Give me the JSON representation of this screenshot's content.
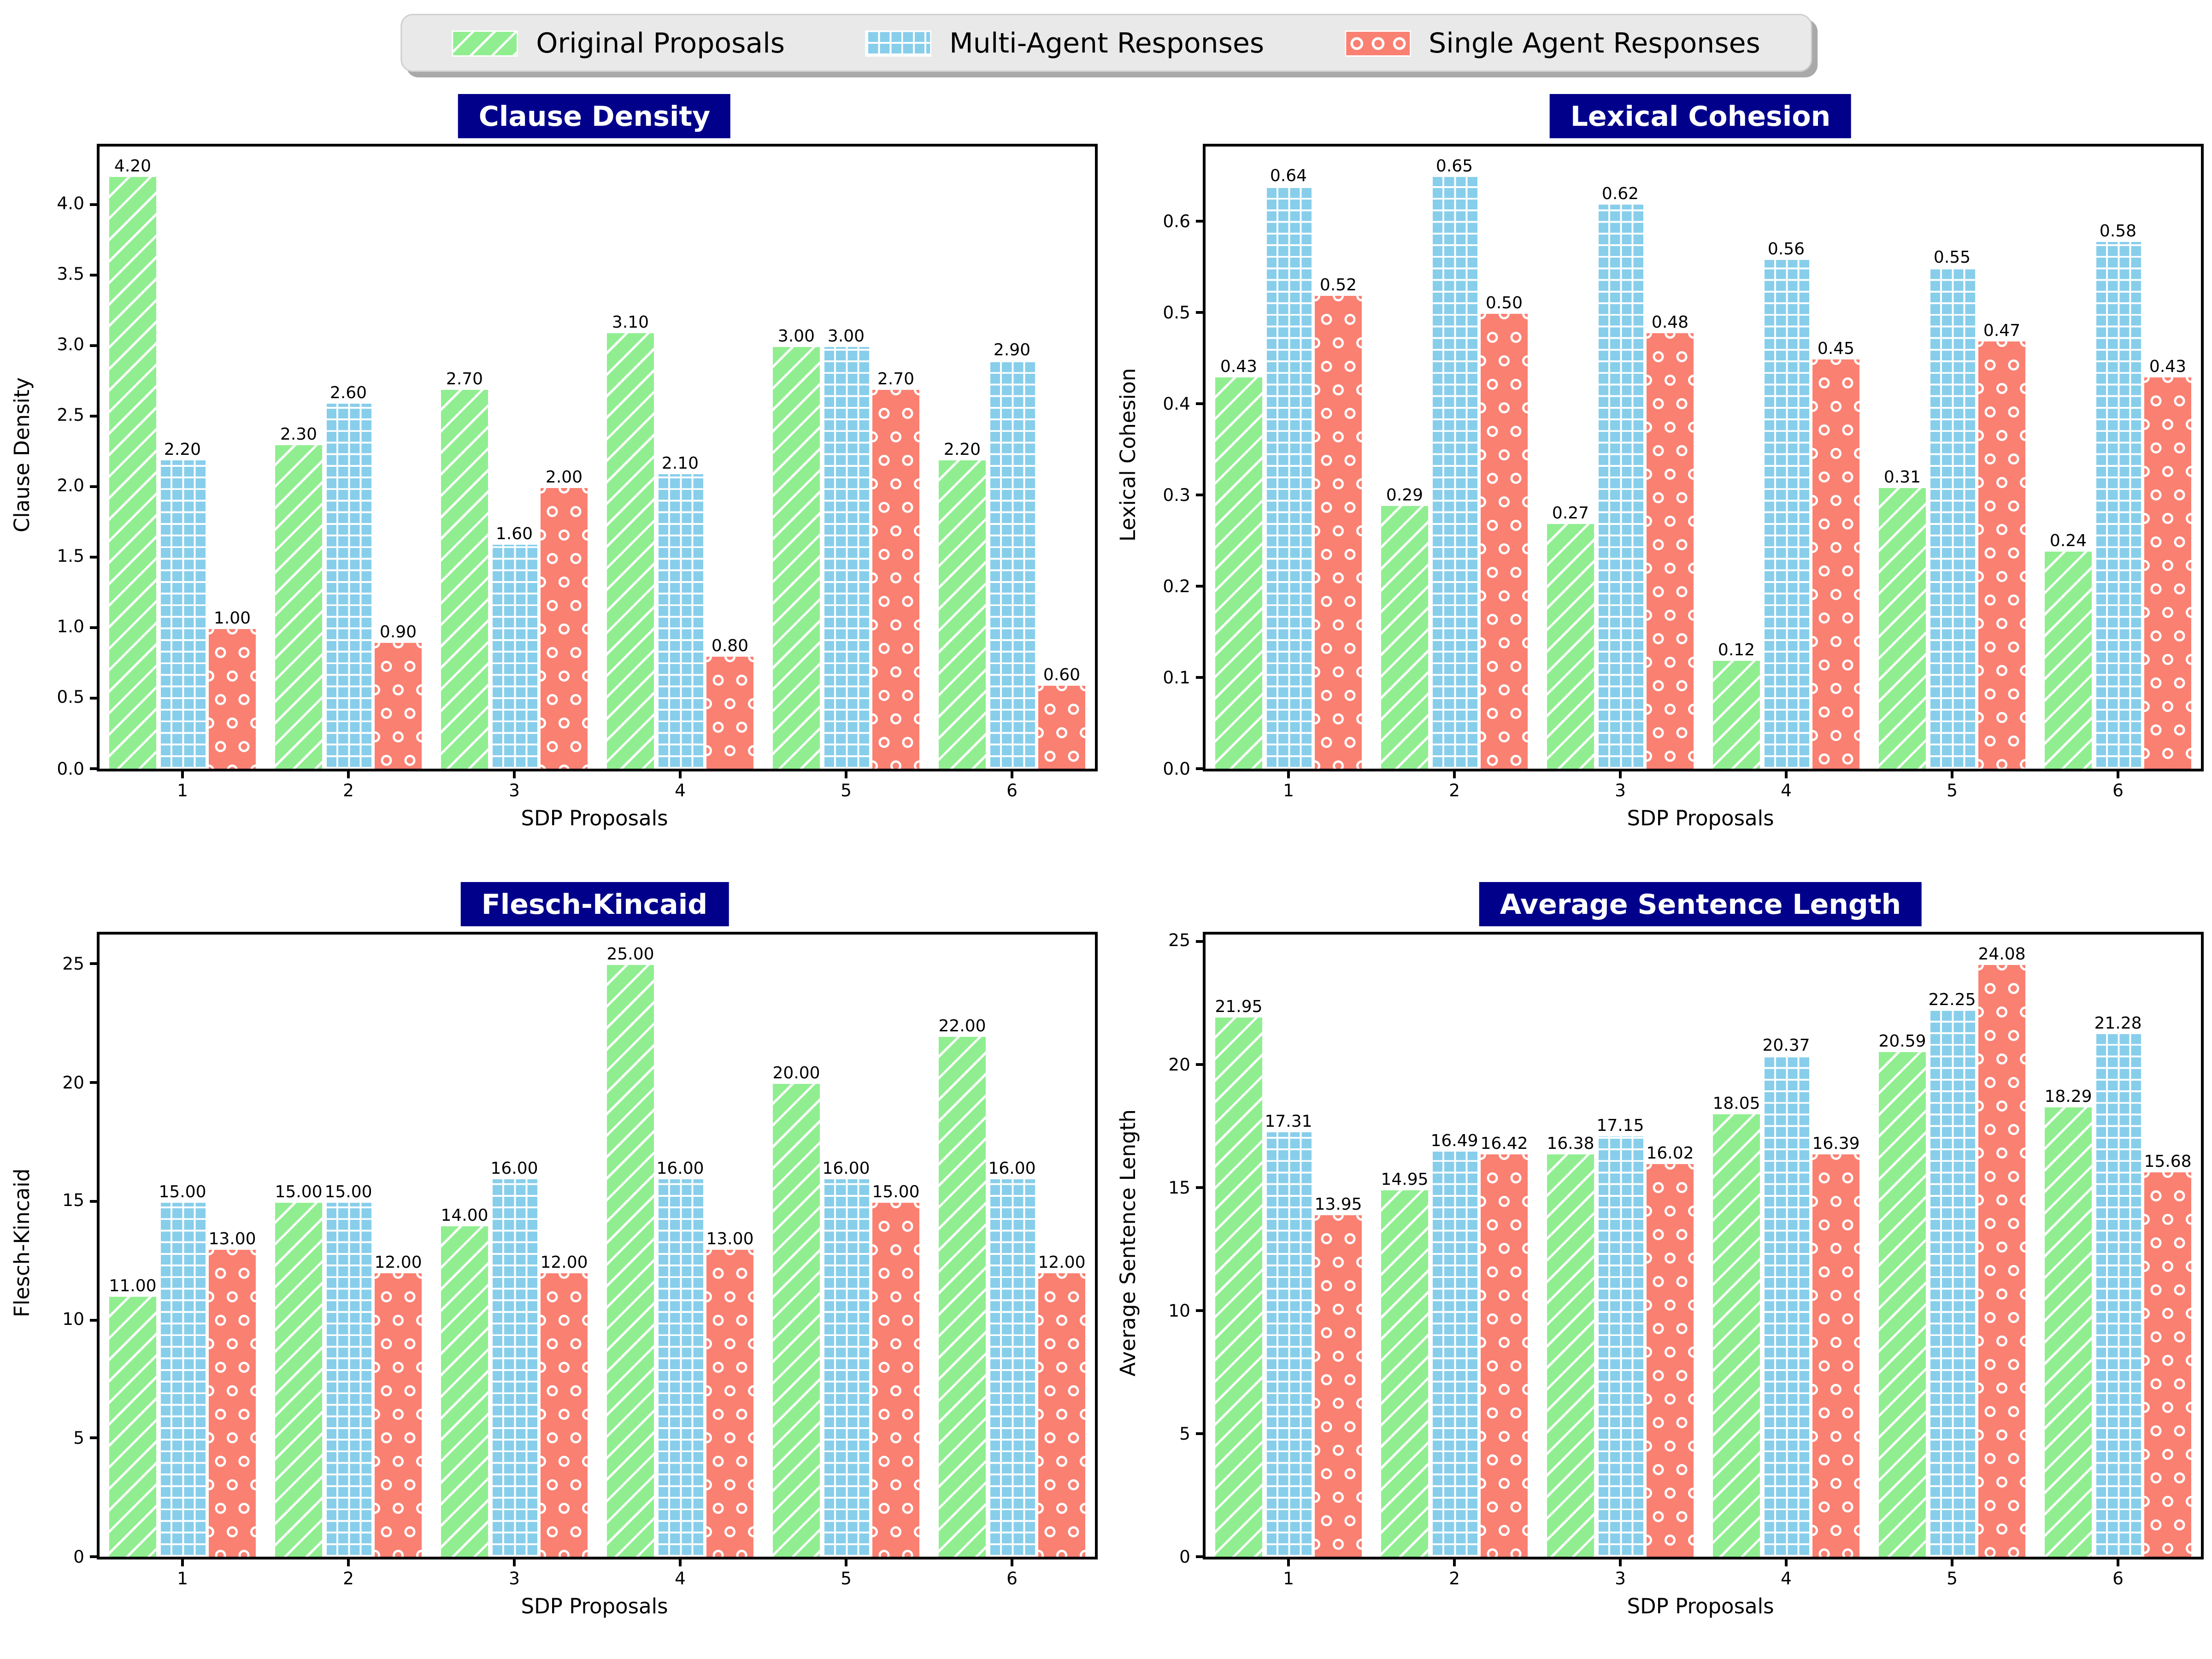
{
  "figure": {
    "background": "#FFFFFF"
  },
  "legend": {
    "background": "#E9E9E9",
    "items": [
      {
        "label": "Original Proposals",
        "swatch": "green-diagonal-hatch",
        "color": "#90EE90"
      },
      {
        "label": "Multi-Agent Responses",
        "swatch": "blue-grid-hatch",
        "color": "#87CEEB"
      },
      {
        "label": "Single Agent Responses",
        "swatch": "salmon-circle-hatch",
        "color": "#FA8072"
      }
    ]
  },
  "style": {
    "title_background": "#00008B",
    "title_text_color": "#FFFFFF",
    "hatch_color": "#FFFFFF",
    "axis_color": "#000000"
  },
  "chart_data": [
    {
      "type": "bar",
      "title": "Clause Density",
      "xlabel": "SDP Proposals",
      "ylabel": "Clause Density",
      "categories": [
        "1",
        "2",
        "3",
        "4",
        "5",
        "6"
      ],
      "series": [
        {
          "name": "Original Proposals",
          "color": "#90EE90",
          "hatch": "diagonal",
          "values": [
            4.2,
            2.3,
            2.7,
            3.1,
            3.0,
            2.2
          ]
        },
        {
          "name": "Multi-Agent Responses",
          "color": "#87CEEB",
          "hatch": "grid",
          "values": [
            2.2,
            2.6,
            1.6,
            2.1,
            3.0,
            2.9
          ]
        },
        {
          "name": "Single Agent Responses",
          "color": "#FA8072",
          "hatch": "circles",
          "values": [
            1.0,
            0.9,
            2.0,
            0.8,
            2.7,
            0.6
          ]
        }
      ],
      "ylim": [
        0,
        4.41
      ],
      "yticks": [
        0.0,
        0.5,
        1.0,
        1.5,
        2.0,
        2.5,
        3.0,
        3.5,
        4.0
      ],
      "ytick_decimals": 1,
      "bar_label_decimals": 2,
      "grid": false
    },
    {
      "type": "bar",
      "title": "Lexical Cohesion",
      "xlabel": "SDP Proposals",
      "ylabel": "Lexical Cohesion",
      "categories": [
        "1",
        "2",
        "3",
        "4",
        "5",
        "6"
      ],
      "series": [
        {
          "name": "Original Proposals",
          "color": "#90EE90",
          "hatch": "diagonal",
          "values": [
            0.43,
            0.29,
            0.27,
            0.12,
            0.31,
            0.24
          ]
        },
        {
          "name": "Multi-Agent Responses",
          "color": "#87CEEB",
          "hatch": "grid",
          "values": [
            0.64,
            0.65,
            0.62,
            0.56,
            0.55,
            0.58
          ]
        },
        {
          "name": "Single Agent Responses",
          "color": "#FA8072",
          "hatch": "circles",
          "values": [
            0.52,
            0.5,
            0.48,
            0.45,
            0.47,
            0.43
          ]
        }
      ],
      "ylim": [
        0,
        0.6825
      ],
      "yticks": [
        0.0,
        0.1,
        0.2,
        0.3,
        0.4,
        0.5,
        0.6
      ],
      "ytick_decimals": 1,
      "bar_label_decimals": 2,
      "grid": false
    },
    {
      "type": "bar",
      "title": "Flesch-Kincaid",
      "xlabel": "SDP Proposals",
      "ylabel": "Flesch-Kincaid",
      "categories": [
        "1",
        "2",
        "3",
        "4",
        "5",
        "6"
      ],
      "series": [
        {
          "name": "Original Proposals",
          "color": "#90EE90",
          "hatch": "diagonal",
          "values": [
            11.0,
            15.0,
            14.0,
            25.0,
            20.0,
            22.0
          ]
        },
        {
          "name": "Multi-Agent Responses",
          "color": "#87CEEB",
          "hatch": "grid",
          "values": [
            15.0,
            15.0,
            16.0,
            16.0,
            16.0,
            16.0
          ]
        },
        {
          "name": "Single Agent Responses",
          "color": "#FA8072",
          "hatch": "circles",
          "values": [
            13.0,
            12.0,
            12.0,
            13.0,
            15.0,
            12.0
          ]
        }
      ],
      "ylim": [
        0,
        26.25
      ],
      "yticks": [
        0,
        5,
        10,
        15,
        20,
        25
      ],
      "ytick_decimals": 0,
      "bar_label_decimals": 2,
      "grid": false
    },
    {
      "type": "bar",
      "title": "Average Sentence Length",
      "xlabel": "SDP Proposals",
      "ylabel": "Average Sentence Length",
      "categories": [
        "1",
        "2",
        "3",
        "4",
        "5",
        "6"
      ],
      "series": [
        {
          "name": "Original Proposals",
          "color": "#90EE90",
          "hatch": "diagonal",
          "values": [
            21.95,
            14.95,
            16.38,
            18.05,
            20.59,
            18.29
          ]
        },
        {
          "name": "Multi-Agent Responses",
          "color": "#87CEEB",
          "hatch": "grid",
          "values": [
            17.31,
            16.49,
            17.15,
            20.37,
            22.25,
            21.28
          ]
        },
        {
          "name": "Single Agent Responses",
          "color": "#FA8072",
          "hatch": "circles",
          "values": [
            13.95,
            16.42,
            16.02,
            16.39,
            24.08,
            15.68
          ]
        }
      ],
      "ylim": [
        0,
        25.28
      ],
      "yticks": [
        0,
        5,
        10,
        15,
        20,
        25
      ],
      "ytick_decimals": 0,
      "bar_label_decimals": 2,
      "grid": false
    }
  ]
}
